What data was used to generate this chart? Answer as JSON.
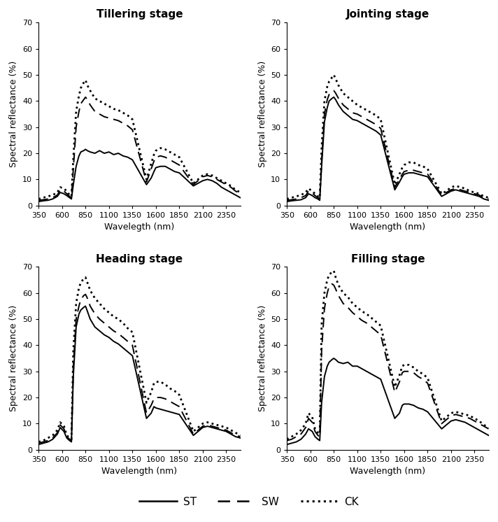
{
  "titles": [
    "Tillering stage",
    "Jointing stage",
    "Heading stage",
    "Filling stage"
  ],
  "xlabels": [
    "Wavelegth (nm)",
    "Wavelength (nm)",
    "Wavelength (nm)",
    "Wavelength (nm)"
  ],
  "ylabel": "Spectral reflectance (%)",
  "ylim": [
    0,
    70
  ],
  "yticks": [
    0,
    10,
    20,
    30,
    40,
    50,
    60,
    70
  ],
  "xticks": [
    350,
    600,
    850,
    1100,
    1350,
    1600,
    1850,
    2100,
    2350
  ],
  "xlim": [
    350,
    2500
  ],
  "background_color": "#ffffff",
  "panels": {
    "tillering": {
      "ST": {
        "x": [
          350,
          400,
          450,
          500,
          550,
          580,
          620,
          650,
          680,
          700,
          720,
          750,
          780,
          800,
          830,
          850,
          870,
          900,
          950,
          1000,
          1050,
          1100,
          1150,
          1200,
          1250,
          1300,
          1350,
          1500,
          1550,
          1580,
          1600,
          1650,
          1700,
          1750,
          1800,
          1850,
          2000,
          2050,
          2100,
          2150,
          2200,
          2250,
          2300,
          2350,
          2400,
          2450,
          2500
        ],
        "y": [
          1.5,
          1.8,
          2.0,
          2.5,
          3.5,
          5.0,
          4.5,
          3.8,
          3.0,
          2.5,
          8.0,
          15.0,
          19.0,
          20.5,
          21.0,
          21.5,
          21.0,
          20.5,
          20.0,
          21.0,
          20.0,
          20.5,
          19.5,
          20.0,
          19.0,
          18.5,
          17.5,
          8.0,
          10.5,
          13.0,
          14.5,
          15.0,
          15.0,
          14.0,
          13.0,
          12.5,
          7.5,
          8.5,
          9.5,
          10.0,
          9.5,
          8.5,
          7.0,
          6.0,
          5.0,
          4.0,
          3.0
        ]
      },
      "SW": {
        "x": [
          350,
          400,
          450,
          500,
          550,
          580,
          620,
          650,
          680,
          700,
          720,
          750,
          780,
          800,
          830,
          850,
          870,
          900,
          950,
          1000,
          1050,
          1100,
          1150,
          1200,
          1250,
          1300,
          1350,
          1500,
          1550,
          1580,
          1600,
          1650,
          1700,
          1750,
          1800,
          1850,
          2000,
          2050,
          2100,
          2150,
          2200,
          2250,
          2300,
          2350,
          2400,
          2450,
          2500
        ],
        "y": [
          2.0,
          2.2,
          2.5,
          3.0,
          4.0,
          6.0,
          5.5,
          4.5,
          3.5,
          3.0,
          14.0,
          30.0,
          36.0,
          39.0,
          40.5,
          41.5,
          40.5,
          38.5,
          36.0,
          35.0,
          34.0,
          33.5,
          33.0,
          32.5,
          31.5,
          30.5,
          29.0,
          9.0,
          14.0,
          17.0,
          18.5,
          19.0,
          18.5,
          17.5,
          16.5,
          15.5,
          8.0,
          9.5,
          11.0,
          11.5,
          11.0,
          10.0,
          9.0,
          8.0,
          7.0,
          5.5,
          4.5
        ]
      },
      "CK": {
        "x": [
          350,
          400,
          450,
          500,
          550,
          580,
          620,
          650,
          680,
          700,
          720,
          750,
          780,
          800,
          830,
          850,
          870,
          900,
          950,
          1000,
          1050,
          1100,
          1150,
          1200,
          1250,
          1300,
          1350,
          1500,
          1550,
          1580,
          1600,
          1650,
          1700,
          1750,
          1800,
          1850,
          2000,
          2050,
          2100,
          2150,
          2200,
          2250,
          2300,
          2350,
          2400,
          2450,
          2500
        ],
        "y": [
          2.5,
          3.0,
          3.5,
          4.0,
          5.0,
          7.0,
          6.5,
          5.5,
          4.0,
          3.5,
          18.0,
          36.0,
          42.0,
          45.0,
          47.0,
          48.0,
          46.0,
          44.0,
          41.0,
          40.0,
          39.0,
          38.0,
          37.0,
          36.5,
          35.5,
          34.5,
          33.0,
          10.0,
          16.0,
          19.5,
          21.0,
          22.0,
          21.5,
          20.5,
          19.5,
          18.5,
          8.5,
          10.0,
          11.5,
          12.0,
          11.5,
          10.5,
          9.5,
          8.5,
          7.5,
          6.0,
          5.0
        ]
      }
    },
    "jointing": {
      "ST": {
        "x": [
          350,
          400,
          450,
          500,
          550,
          580,
          620,
          650,
          680,
          700,
          720,
          750,
          780,
          800,
          830,
          850,
          870,
          900,
          950,
          1000,
          1050,
          1100,
          1150,
          1200,
          1250,
          1300,
          1350,
          1500,
          1550,
          1580,
          1600,
          1650,
          1700,
          1750,
          1800,
          1850,
          2000,
          2050,
          2100,
          2150,
          2200,
          2250,
          2300,
          2350,
          2400,
          2450,
          2500
        ],
        "y": [
          1.5,
          1.8,
          2.0,
          2.2,
          3.0,
          4.5,
          3.8,
          3.0,
          2.5,
          2.0,
          15.0,
          32.0,
          37.5,
          40.0,
          41.0,
          41.5,
          40.5,
          38.5,
          36.0,
          34.5,
          33.0,
          32.5,
          31.5,
          30.5,
          29.5,
          28.5,
          27.0,
          6.0,
          9.0,
          11.0,
          12.0,
          12.5,
          12.5,
          12.0,
          11.5,
          11.0,
          3.5,
          4.5,
          5.5,
          6.0,
          5.5,
          5.0,
          4.5,
          4.0,
          3.5,
          2.5,
          2.0
        ]
      },
      "SW": {
        "x": [
          350,
          400,
          450,
          500,
          550,
          580,
          620,
          650,
          680,
          700,
          720,
          750,
          780,
          800,
          830,
          850,
          870,
          900,
          950,
          1000,
          1050,
          1100,
          1150,
          1200,
          1250,
          1300,
          1350,
          1500,
          1550,
          1580,
          1600,
          1650,
          1700,
          1750,
          1800,
          1850,
          2000,
          2050,
          2100,
          2150,
          2200,
          2250,
          2300,
          2350,
          2400,
          2450,
          2500
        ],
        "y": [
          2.0,
          2.2,
          2.5,
          3.0,
          3.8,
          5.5,
          4.8,
          3.8,
          3.0,
          2.5,
          17.0,
          35.0,
          40.5,
          42.5,
          43.5,
          44.0,
          43.0,
          41.0,
          38.5,
          37.0,
          35.5,
          35.0,
          34.0,
          33.0,
          32.0,
          31.0,
          29.5,
          7.0,
          10.0,
          12.0,
          13.0,
          13.5,
          13.5,
          13.0,
          12.5,
          12.0,
          4.0,
          5.0,
          6.0,
          6.5,
          6.0,
          5.5,
          5.0,
          4.5,
          4.0,
          3.0,
          2.5
        ]
      },
      "CK": {
        "x": [
          350,
          400,
          450,
          500,
          550,
          580,
          620,
          650,
          680,
          700,
          720,
          750,
          780,
          800,
          830,
          850,
          870,
          900,
          950,
          1000,
          1050,
          1100,
          1150,
          1200,
          1250,
          1300,
          1350,
          1500,
          1550,
          1580,
          1600,
          1650,
          1700,
          1750,
          1800,
          1850,
          2000,
          2050,
          2100,
          2150,
          2200,
          2250,
          2300,
          2350,
          2400,
          2450,
          2500
        ],
        "y": [
          2.5,
          3.0,
          3.5,
          4.0,
          5.0,
          6.5,
          5.5,
          4.5,
          3.5,
          3.0,
          22.0,
          40.0,
          45.5,
          47.5,
          49.0,
          50.0,
          48.5,
          46.0,
          43.0,
          41.5,
          40.0,
          38.5,
          37.5,
          36.5,
          35.5,
          34.5,
          33.0,
          8.0,
          12.0,
          14.5,
          15.5,
          16.5,
          16.5,
          15.5,
          15.0,
          14.0,
          4.5,
          5.5,
          7.0,
          7.5,
          7.0,
          6.5,
          5.5,
          5.0,
          4.5,
          3.5,
          3.0
        ]
      }
    },
    "heading": {
      "ST": {
        "x": [
          350,
          400,
          450,
          500,
          550,
          580,
          620,
          650,
          680,
          700,
          720,
          750,
          780,
          800,
          830,
          850,
          870,
          900,
          950,
          1000,
          1050,
          1100,
          1150,
          1200,
          1250,
          1300,
          1350,
          1500,
          1550,
          1580,
          1600,
          1650,
          1700,
          1750,
          1800,
          1850,
          2000,
          2050,
          2100,
          2150,
          2200,
          2250,
          2300,
          2350,
          2400,
          2450,
          2500
        ],
        "y": [
          2.0,
          2.5,
          3.0,
          4.0,
          6.0,
          8.5,
          7.0,
          4.5,
          3.5,
          3.0,
          28.0,
          47.0,
          52.0,
          53.5,
          54.5,
          55.0,
          53.0,
          50.0,
          47.0,
          45.5,
          44.0,
          43.0,
          41.5,
          40.5,
          39.0,
          37.5,
          36.0,
          12.0,
          14.0,
          16.5,
          16.0,
          15.5,
          15.0,
          14.5,
          14.0,
          13.5,
          5.5,
          7.0,
          8.5,
          9.0,
          8.5,
          8.0,
          7.5,
          7.0,
          6.0,
          5.0,
          4.5
        ]
      },
      "SW": {
        "x": [
          350,
          400,
          450,
          500,
          550,
          580,
          620,
          650,
          680,
          700,
          720,
          750,
          780,
          800,
          830,
          850,
          870,
          900,
          950,
          1000,
          1050,
          1100,
          1150,
          1200,
          1250,
          1300,
          1350,
          1500,
          1550,
          1580,
          1600,
          1650,
          1700,
          1750,
          1800,
          1850,
          2000,
          2050,
          2100,
          2150,
          2200,
          2250,
          2300,
          2350,
          2400,
          2450,
          2500
        ],
        "y": [
          2.5,
          3.0,
          3.5,
          4.5,
          6.5,
          9.5,
          8.0,
          5.0,
          4.0,
          3.5,
          32.0,
          50.0,
          55.0,
          57.5,
          59.0,
          59.5,
          58.0,
          55.0,
          52.0,
          50.0,
          48.5,
          47.0,
          45.5,
          44.5,
          43.0,
          41.5,
          40.0,
          14.0,
          17.0,
          19.5,
          20.0,
          20.0,
          19.5,
          18.5,
          17.5,
          16.5,
          6.0,
          7.5,
          9.0,
          9.5,
          9.0,
          8.5,
          8.0,
          7.5,
          6.5,
          5.5,
          5.0
        ]
      },
      "CK": {
        "x": [
          350,
          400,
          450,
          500,
          550,
          580,
          620,
          650,
          680,
          700,
          720,
          750,
          780,
          800,
          830,
          850,
          870,
          900,
          950,
          1000,
          1050,
          1100,
          1150,
          1200,
          1250,
          1300,
          1350,
          1500,
          1550,
          1580,
          1600,
          1650,
          1700,
          1750,
          1800,
          1850,
          2000,
          2050,
          2100,
          2150,
          2200,
          2250,
          2300,
          2350,
          2400,
          2450,
          2500
        ],
        "y": [
          3.0,
          3.5,
          4.5,
          5.5,
          7.5,
          10.5,
          9.0,
          5.5,
          4.5,
          4.0,
          38.0,
          56.0,
          62.0,
          64.0,
          65.5,
          66.0,
          64.0,
          61.0,
          58.0,
          56.0,
          54.0,
          52.5,
          51.0,
          50.0,
          48.5,
          46.5,
          45.0,
          18.0,
          22.0,
          25.5,
          26.0,
          26.0,
          25.0,
          23.5,
          22.5,
          21.0,
          7.0,
          8.5,
          10.0,
          10.5,
          10.0,
          9.5,
          9.0,
          8.5,
          7.5,
          6.5,
          5.5
        ]
      }
    },
    "filling": {
      "ST": {
        "x": [
          350,
          400,
          450,
          500,
          550,
          580,
          620,
          650,
          680,
          700,
          720,
          750,
          780,
          800,
          830,
          850,
          870,
          900,
          950,
          1000,
          1050,
          1100,
          1150,
          1200,
          1250,
          1300,
          1350,
          1500,
          1550,
          1580,
          1600,
          1650,
          1700,
          1750,
          1800,
          1850,
          2000,
          2050,
          2100,
          2150,
          2200,
          2250,
          2300,
          2350,
          2400,
          2450,
          2500
        ],
        "y": [
          2.0,
          2.5,
          3.0,
          4.0,
          6.0,
          8.0,
          7.0,
          5.0,
          4.0,
          3.5,
          18.0,
          28.0,
          32.0,
          33.5,
          34.5,
          35.0,
          34.5,
          33.5,
          33.0,
          33.5,
          32.0,
          32.0,
          31.0,
          30.0,
          29.0,
          28.0,
          27.0,
          12.0,
          14.0,
          17.0,
          17.5,
          17.5,
          17.0,
          16.0,
          15.5,
          14.5,
          8.0,
          9.5,
          11.0,
          11.5,
          11.0,
          10.5,
          9.5,
          8.5,
          7.5,
          6.5,
          5.5
        ]
      },
      "SW": {
        "x": [
          350,
          400,
          450,
          500,
          550,
          580,
          620,
          650,
          680,
          700,
          720,
          750,
          780,
          800,
          830,
          850,
          870,
          900,
          950,
          1000,
          1050,
          1100,
          1150,
          1200,
          1250,
          1300,
          1350,
          1500,
          1550,
          1580,
          1600,
          1650,
          1700,
          1750,
          1800,
          1850,
          2000,
          2050,
          2100,
          2150,
          2200,
          2250,
          2300,
          2350,
          2400,
          2450,
          2500
        ],
        "y": [
          3.5,
          4.0,
          5.0,
          6.0,
          8.5,
          12.0,
          10.5,
          7.0,
          5.5,
          5.0,
          38.0,
          54.0,
          60.0,
          62.5,
          63.5,
          63.0,
          61.5,
          59.0,
          56.0,
          54.5,
          52.5,
          51.0,
          49.5,
          48.5,
          47.0,
          45.5,
          44.0,
          22.0,
          26.0,
          29.5,
          30.0,
          30.0,
          29.5,
          28.0,
          27.0,
          25.5,
          10.0,
          11.5,
          13.0,
          13.5,
          13.0,
          12.5,
          12.0,
          11.0,
          10.0,
          9.0,
          8.0
        ]
      },
      "CK": {
        "x": [
          350,
          400,
          450,
          500,
          550,
          580,
          620,
          650,
          680,
          700,
          720,
          750,
          780,
          800,
          830,
          850,
          870,
          900,
          950,
          1000,
          1050,
          1100,
          1150,
          1200,
          1250,
          1300,
          1350,
          1500,
          1550,
          1580,
          1600,
          1650,
          1700,
          1750,
          1800,
          1850,
          2000,
          2050,
          2100,
          2150,
          2200,
          2250,
          2300,
          2350,
          2400,
          2450,
          2500
        ],
        "y": [
          4.0,
          5.0,
          6.0,
          7.5,
          10.0,
          14.0,
          12.5,
          8.0,
          6.5,
          6.0,
          48.0,
          60.0,
          65.0,
          67.0,
          68.0,
          68.5,
          66.0,
          63.0,
          60.0,
          58.5,
          56.0,
          54.5,
          53.0,
          52.0,
          50.5,
          49.0,
          47.5,
          24.0,
          28.5,
          32.0,
          32.5,
          32.5,
          31.5,
          30.0,
          29.0,
          27.5,
          11.0,
          12.5,
          14.0,
          14.5,
          14.0,
          13.5,
          13.0,
          12.0,
          11.0,
          9.5,
          8.5
        ]
      }
    }
  }
}
